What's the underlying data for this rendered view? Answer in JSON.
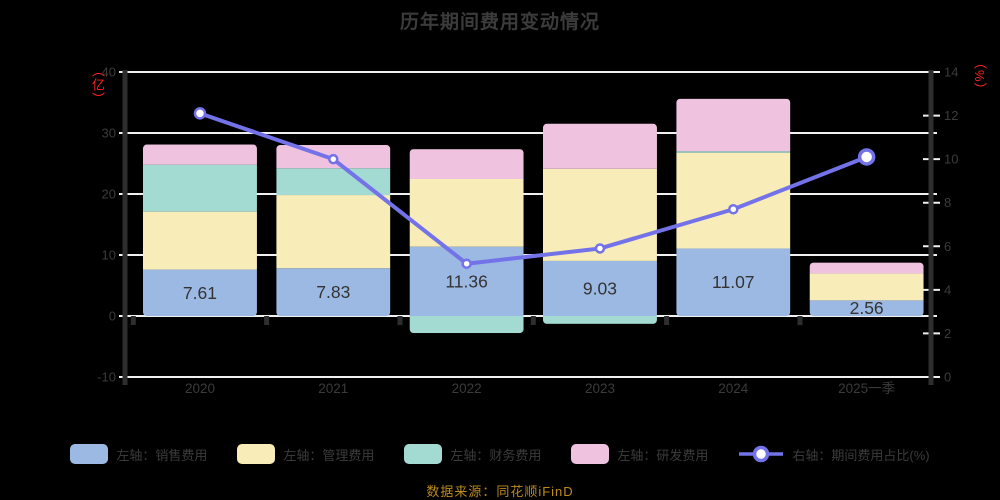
{
  "title": "历年期间费用变动情况",
  "left_axis_unit": "（亿）",
  "right_axis_unit": "（%）",
  "source_note": "数据来源：同花顺iFinD",
  "colors": {
    "background": "#000000",
    "grid": "#f0f0f0",
    "axis_line": "#2e2e2e",
    "text": "#3b3b3b",
    "bar_value_label": "#333333",
    "series_blue": "#9cb9e3",
    "series_yellow": "#f8ecb8",
    "series_teal": "#a3dbd3",
    "series_pink": "#efc3df",
    "line_purple": "#7472e8",
    "unit_red": "#ff2222",
    "source_orange": "#bd8a1c"
  },
  "legend": [
    {
      "label": "左轴：销售费用",
      "color": "#9cb9e3",
      "marker": "swatch"
    },
    {
      "label": "左轴：管理费用",
      "color": "#f8ecb8",
      "marker": "swatch"
    },
    {
      "label": "左轴：财务费用",
      "color": "#a3dbd3",
      "marker": "swatch"
    },
    {
      "label": "左轴：研发费用",
      "color": "#efc3df",
      "marker": "swatch"
    },
    {
      "label": "右轴：期间费用占比(%)",
      "color": "#7472e8",
      "marker": "line-ring"
    }
  ],
  "chart_data": {
    "type": "bar",
    "subtype": "stacked-bar-with-line",
    "categories": [
      "2020",
      "2021",
      "2022",
      "2023",
      "2024",
      "2025一季"
    ],
    "series": [
      {
        "name": "左轴：销售费用",
        "type": "bar",
        "color": "#9cb9e3",
        "values": [
          7.61,
          7.83,
          11.36,
          9.03,
          11.07,
          2.56
        ]
      },
      {
        "name": "左轴：管理费用",
        "type": "bar",
        "color": "#f8ecb8",
        "values": [
          9.5,
          12.0,
          11.1,
          15.1,
          15.7,
          4.4
        ]
      },
      {
        "name": "左轴：财务费用",
        "type": "bar",
        "color": "#a3dbd3",
        "values": [
          7.7,
          4.4,
          -2.8,
          -1.3,
          0.25,
          0
        ]
      },
      {
        "name": "左轴：研发费用",
        "type": "bar",
        "color": "#efc3df",
        "values": [
          3.3,
          3.8,
          4.9,
          7.4,
          8.6,
          1.8
        ]
      },
      {
        "name": "右轴：期间费用占比(%)",
        "type": "line",
        "color": "#7472e8",
        "values": [
          12.1,
          10.0,
          5.2,
          5.9,
          7.7,
          10.1
        ]
      }
    ],
    "bar_value_labels": [
      "7.61",
      "7.83",
      "11.36",
      "9.03",
      "11.07",
      "2.56"
    ],
    "left_axis": {
      "min": -10,
      "max": 40,
      "ticks": [
        40,
        30,
        20,
        10,
        0,
        -10
      ]
    },
    "right_axis": {
      "min": 0,
      "max": 14,
      "ticks": [
        14,
        12,
        10,
        8,
        6,
        4,
        2,
        0
      ]
    },
    "grid": true,
    "legend_position": "bottom",
    "xlabel": "",
    "ylabel_left": "（亿）",
    "ylabel_right": "（%）"
  }
}
